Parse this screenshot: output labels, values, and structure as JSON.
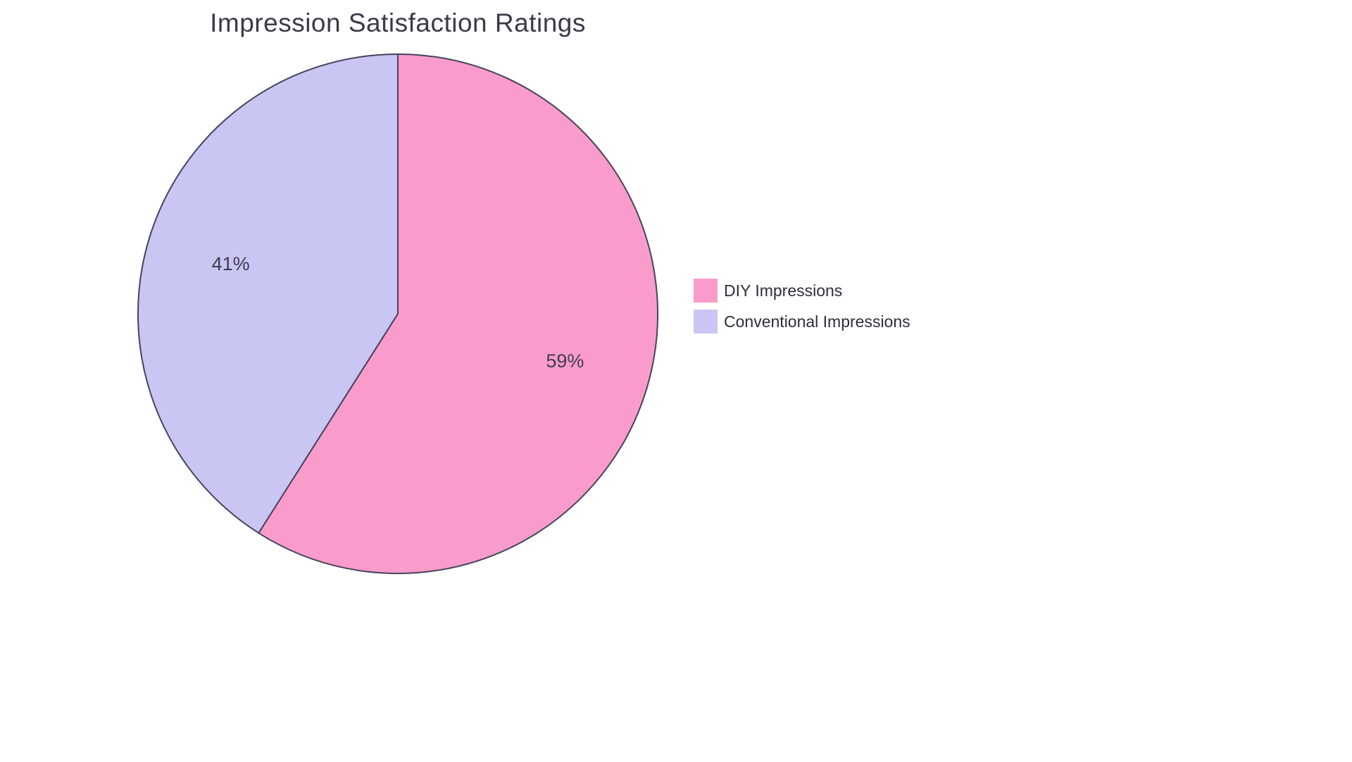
{
  "page": {
    "background": "#ffffff"
  },
  "chart_data": {
    "type": "pie",
    "title": "Impression Satisfaction Ratings",
    "labels": [
      "DIY Impressions",
      "Conventional Impressions"
    ],
    "values": [
      59,
      41
    ],
    "value_labels": [
      "59%",
      "41%"
    ],
    "colors": [
      "#F99CCB",
      "#C9C6F4"
    ],
    "stroke_color": "#45435C",
    "text_color": "#3d3d4d",
    "legend_position": "right",
    "start_at": "top",
    "direction": "clockwise"
  }
}
